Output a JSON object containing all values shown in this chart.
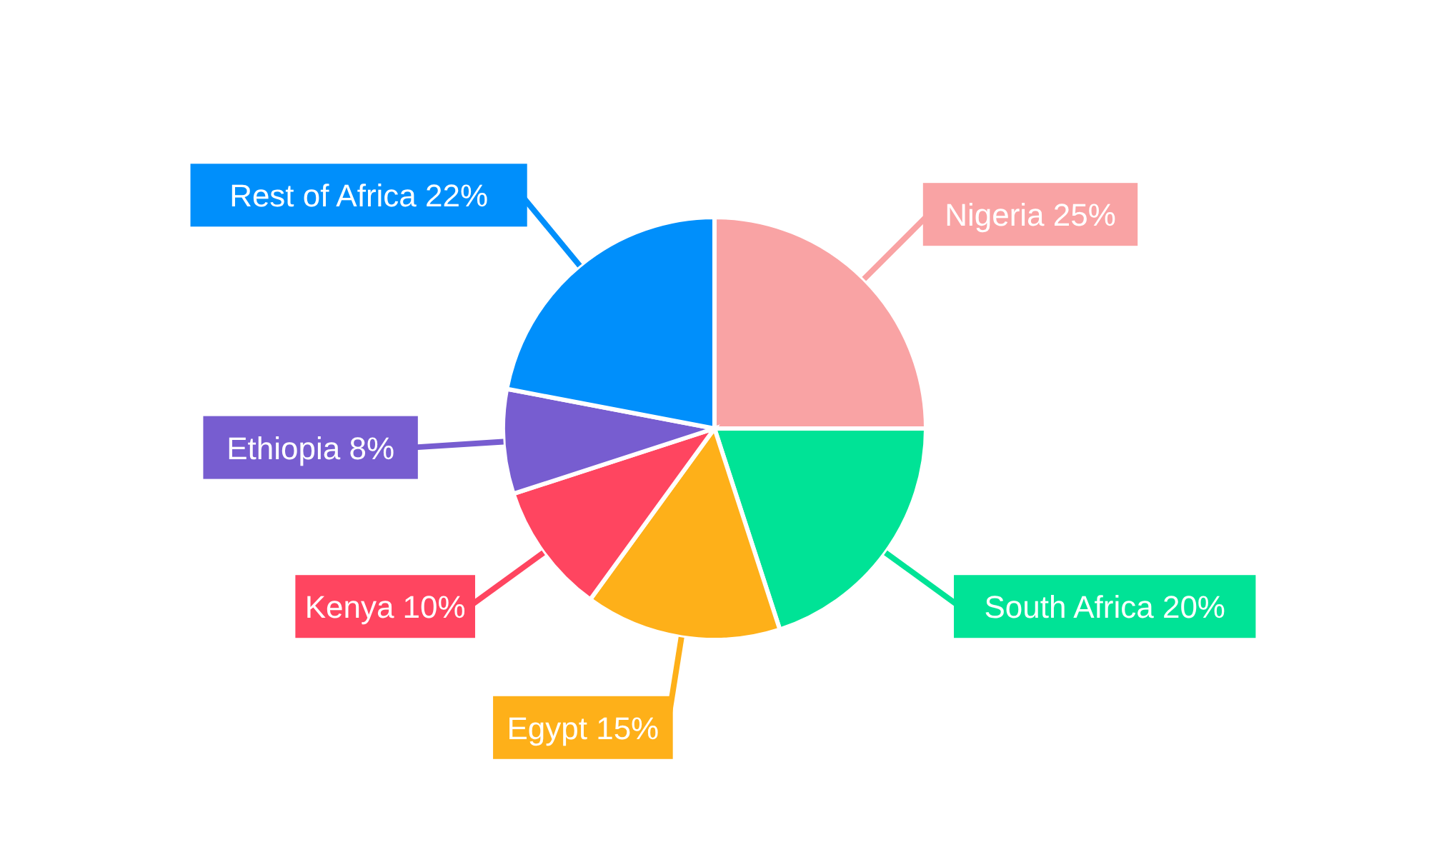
{
  "chart_data": {
    "type": "pie",
    "categories": [
      "Nigeria",
      "South Africa",
      "Egypt",
      "Kenya",
      "Ethiopia",
      "Rest of Africa"
    ],
    "values": [
      25,
      20,
      15,
      10,
      8,
      22
    ],
    "value_labels": [
      "25%",
      "20%",
      "15%",
      "10%",
      "8%",
      "22%"
    ],
    "colors": [
      "#f9a3a4",
      "#00e396",
      "#feb019",
      "#ff4560",
      "#775dd0",
      "#008ffb"
    ]
  }
}
